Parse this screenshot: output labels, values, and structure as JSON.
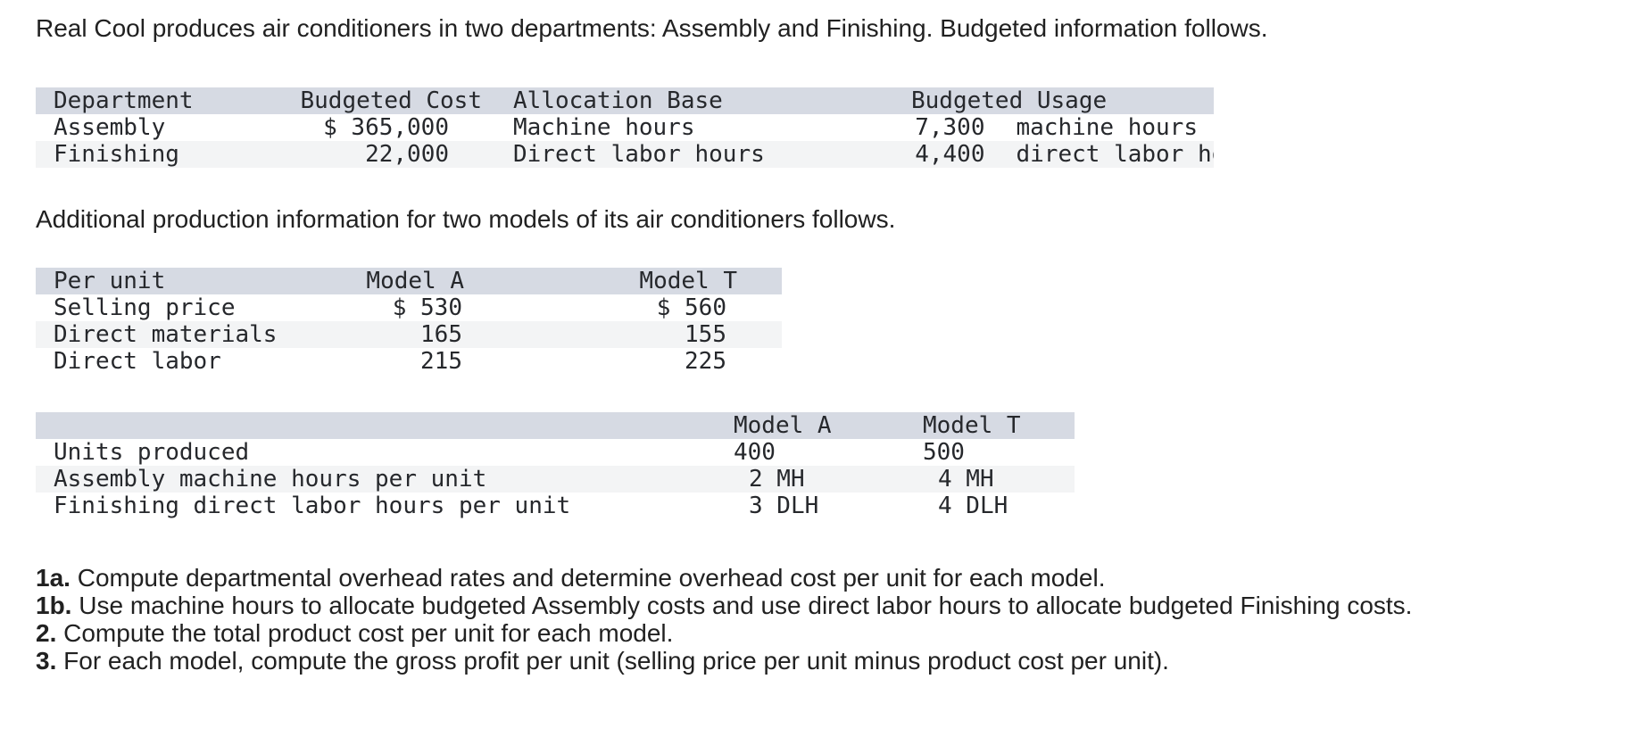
{
  "intro": "Real Cool produces air conditioners in two departments: Assembly and Finishing. Budgeted information follows.",
  "dept_table": {
    "headers": [
      "Department",
      "Budgeted Cost",
      "Allocation Base",
      "Budgeted Usage"
    ],
    "rows": [
      {
        "department": "Assembly",
        "budgeted_cost": "$ 365,000",
        "allocation_base": "Machine hours",
        "usage_qty": "7,300",
        "usage_unit": "machine hours"
      },
      {
        "department": "Finishing",
        "budgeted_cost": "22,000",
        "allocation_base": "Direct labor hours",
        "usage_qty": "4,400",
        "usage_unit": "direct labor hours"
      }
    ]
  },
  "additional_info": "Additional production information for two models of its air conditioners follows.",
  "per_unit_table": {
    "headers": [
      "Per unit",
      "Model A",
      "Model T"
    ],
    "rows": [
      {
        "label": "Selling price",
        "model_a": "$ 530",
        "model_t": "$ 560"
      },
      {
        "label": "Direct materials",
        "model_a": "165",
        "model_t": "155"
      },
      {
        "label": "Direct labor",
        "model_a": "215",
        "model_t": "225"
      }
    ]
  },
  "production_table": {
    "headers": [
      "",
      "Model A",
      "Model T"
    ],
    "rows": [
      {
        "label": "Units produced",
        "model_a": "400",
        "model_t": "500"
      },
      {
        "label": "Assembly machine hours per unit",
        "model_a": "2 MH",
        "model_t": "4 MH"
      },
      {
        "label": "Finishing direct labor hours per unit",
        "model_a": "3 DLH",
        "model_t": "4 DLH"
      }
    ]
  },
  "questions": [
    {
      "number": "1a.",
      "text": "Compute departmental overhead rates and determine overhead cost per unit for each model."
    },
    {
      "number": "1b.",
      "text": "Use machine hours to allocate budgeted Assembly costs and use direct labor hours to allocate budgeted Finishing costs."
    },
    {
      "number": "2.",
      "text": "Compute the total product cost per unit for each model."
    },
    {
      "number": "3.",
      "text": "For each model, compute the gross profit per unit (selling price per unit minus product cost per unit)."
    }
  ],
  "colors": {
    "table_header_bg": "#d6dae3",
    "row_stripe_bg": "#f3f4f5",
    "text": "#212121"
  }
}
